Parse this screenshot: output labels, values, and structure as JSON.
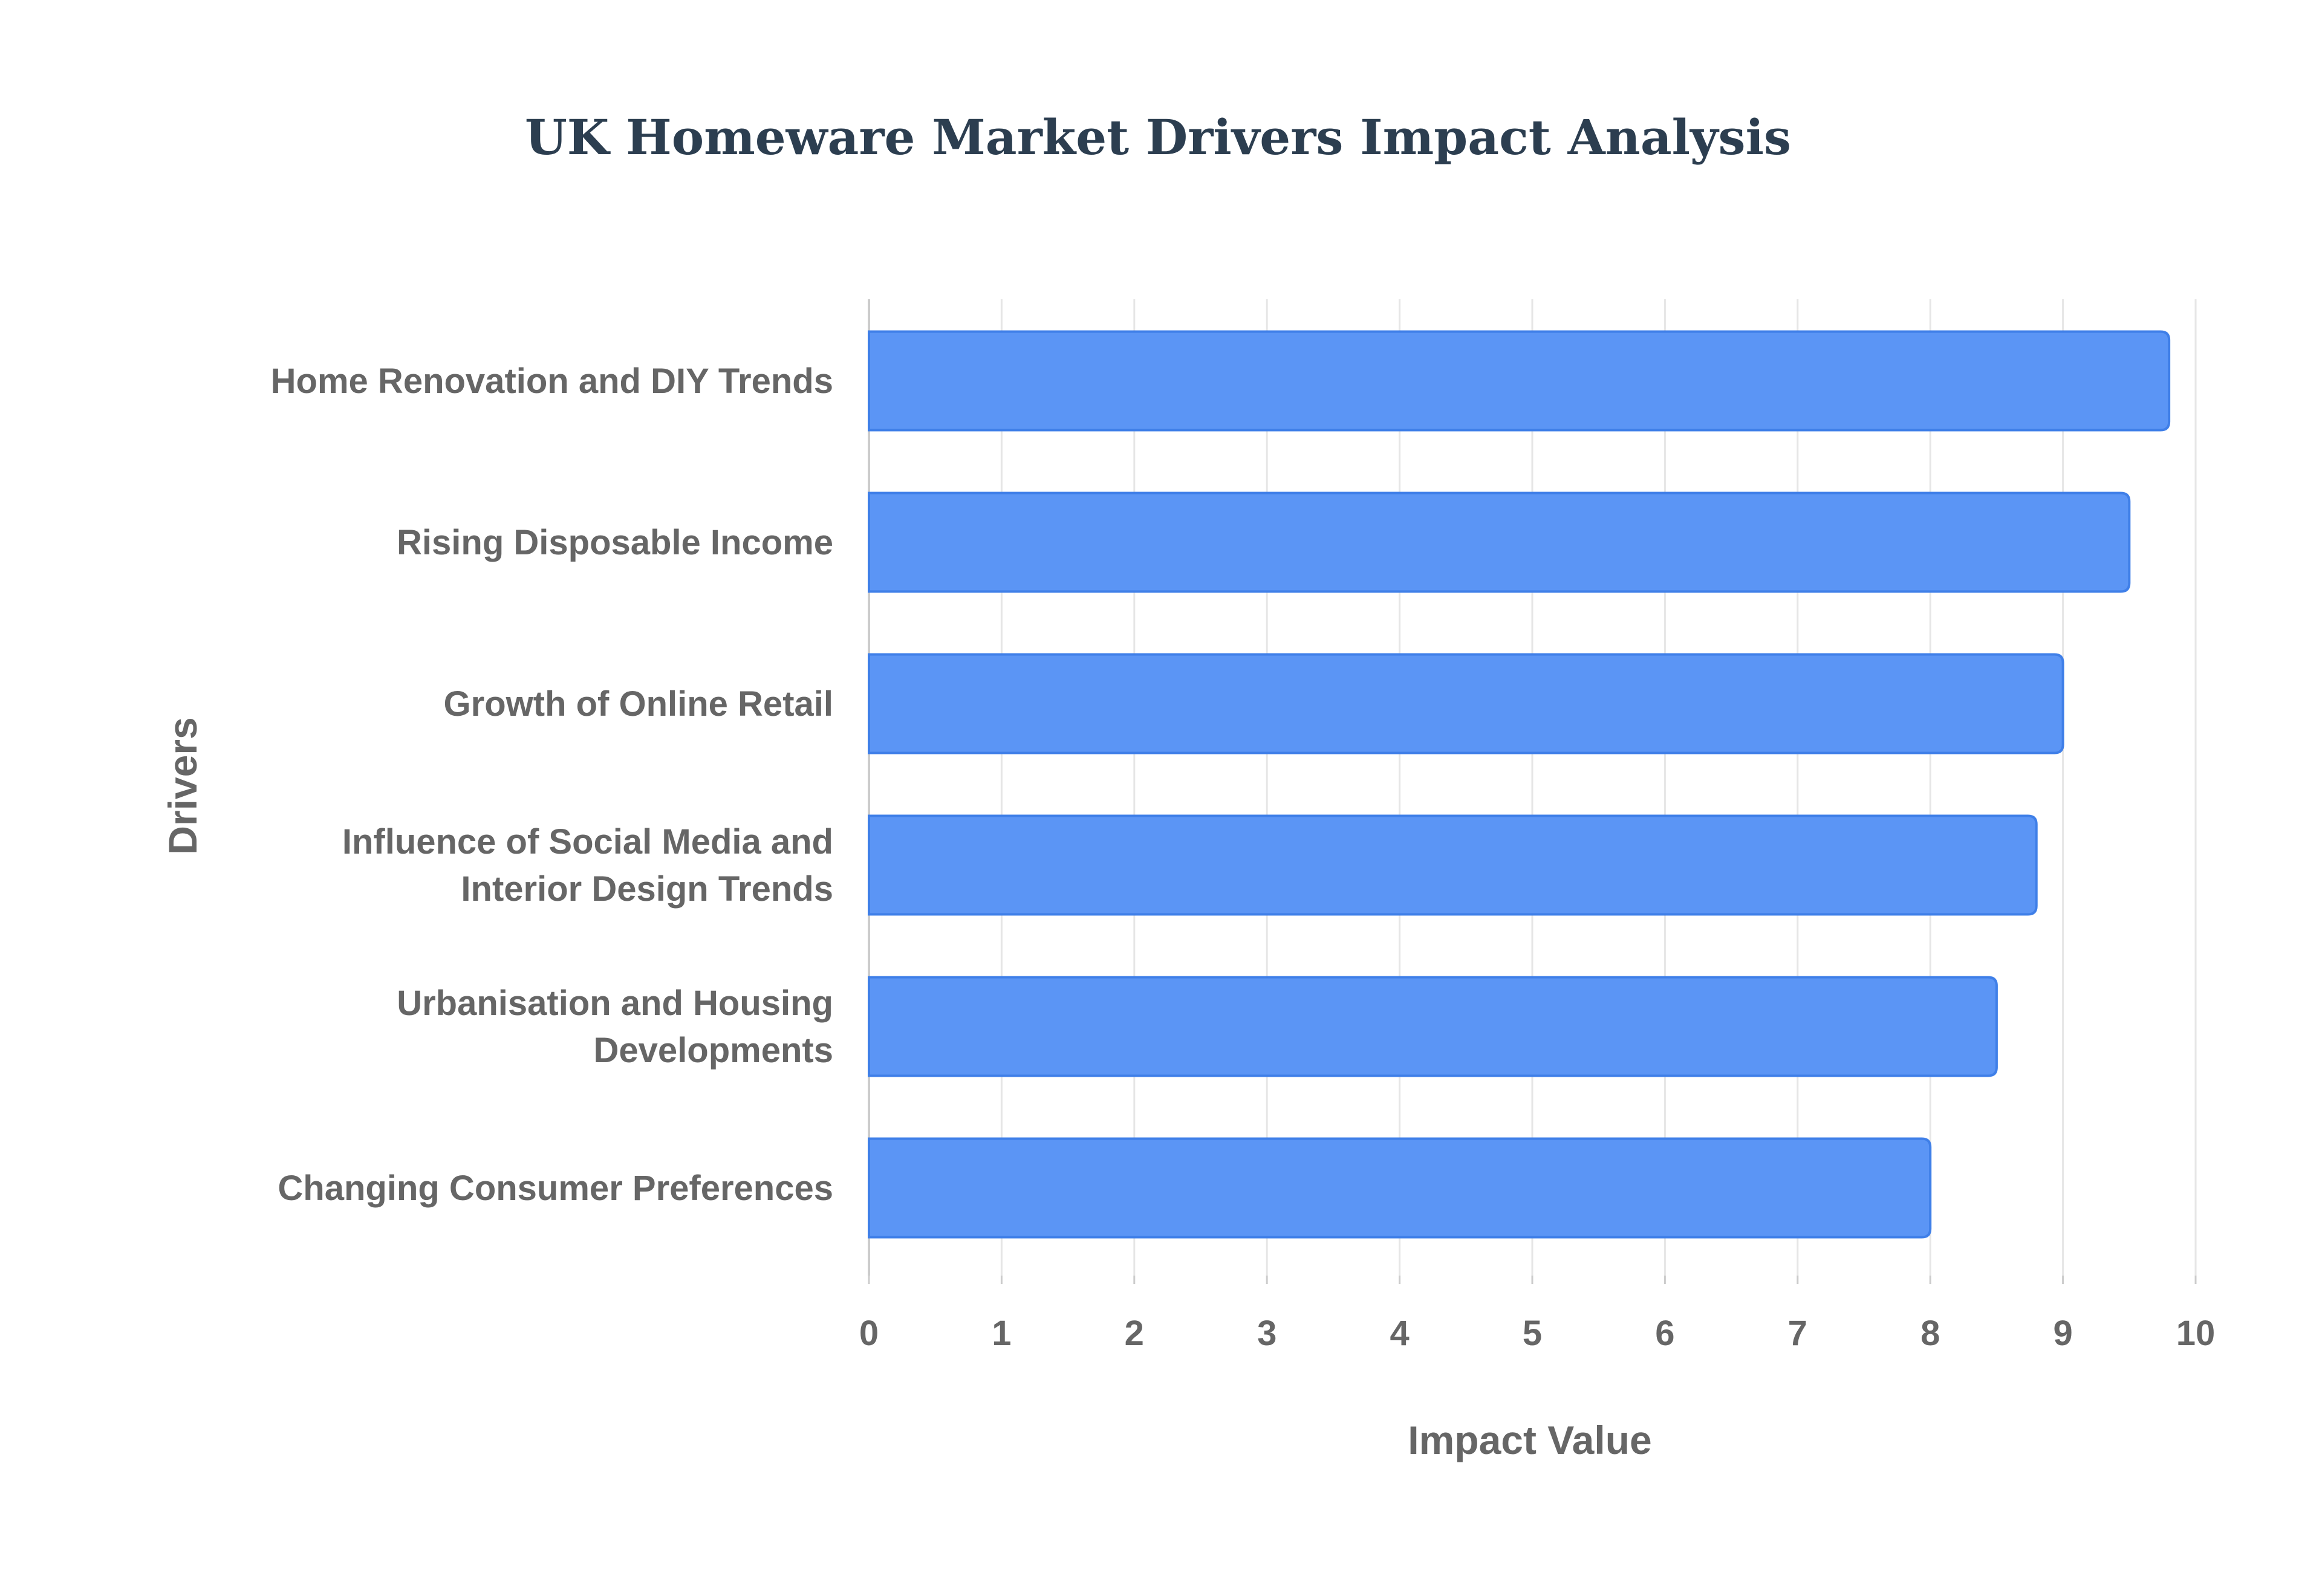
{
  "colors": {
    "bar_fill": "#5B95F5",
    "bar_stroke": "#3F7FE8",
    "title": "#2C3E50",
    "labels": "#666666",
    "grid": "#E6E6E6",
    "axis": "#CCCCCC"
  },
  "chart_data": {
    "type": "bar",
    "orientation": "horizontal",
    "title": "UK Homeware Market Drivers Impact Analysis",
    "xlabel": "Impact Value",
    "ylabel": "Drivers",
    "xlim": [
      0,
      10
    ],
    "x_ticks": [
      0,
      1,
      2,
      3,
      4,
      5,
      6,
      7,
      8,
      9,
      10
    ],
    "grid": true,
    "legend": "none",
    "categories": [
      [
        "Home Renovation and DIY Trends"
      ],
      [
        "Rising Disposable Income"
      ],
      [
        "Growth of Online Retail"
      ],
      [
        "Influence of Social Media and",
        "Interior Design Trends"
      ],
      [
        "Urbanisation and Housing",
        "Developments"
      ],
      [
        "Changing Consumer Preferences"
      ]
    ],
    "values": [
      9.8,
      9.5,
      9.0,
      8.8,
      8.5,
      8.0
    ]
  }
}
